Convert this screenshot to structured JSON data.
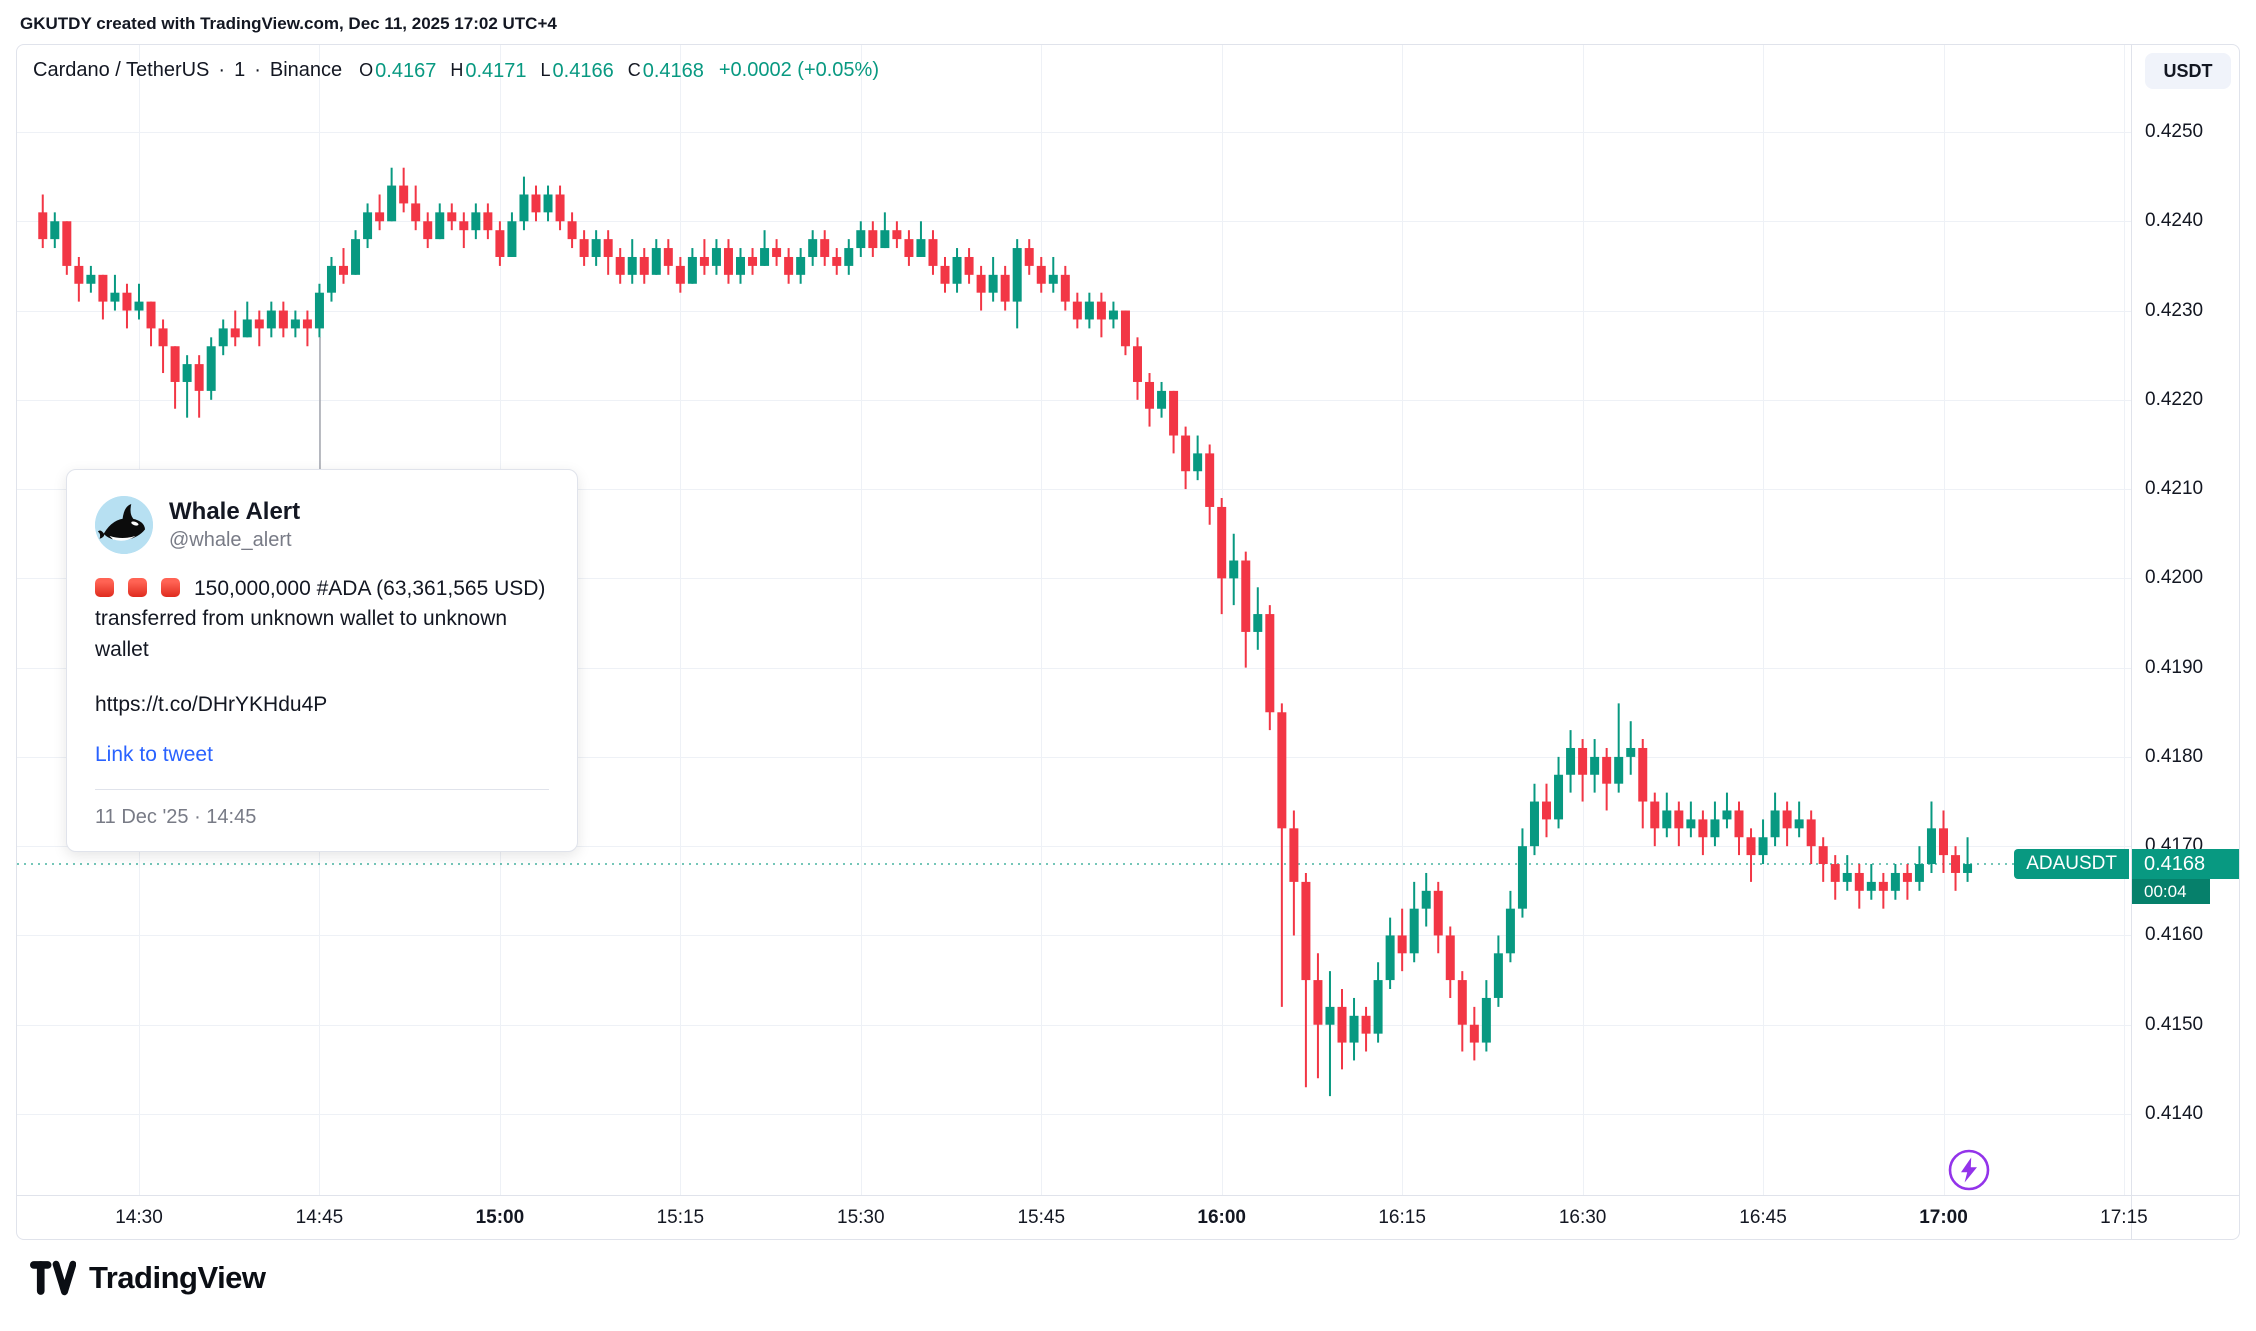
{
  "header": {
    "attribution": "GKUTDY created with TradingView.com, Dec 11, 2025 17:02 UTC+4"
  },
  "toolbar": {
    "currency_button": "USDT"
  },
  "legend": {
    "symbol": "Cardano / TetherUS",
    "separator": "·",
    "interval": "1",
    "exchange": "Binance",
    "ohlc": [
      {
        "label": "O",
        "value": "0.4167"
      },
      {
        "label": "H",
        "value": "0.4171"
      },
      {
        "label": "L",
        "value": "0.4166"
      },
      {
        "label": "C",
        "value": "0.4168"
      }
    ],
    "change": "+0.0002 (+0.05%)"
  },
  "price_flag": {
    "symbol": "ADAUSDT",
    "price": "0.4168",
    "countdown": "00:04"
  },
  "tooltip": {
    "title": "Whale Alert",
    "handle": "@whale_alert",
    "body": "150,000,000 #ADA (63,361,565 USD) transferred from unknown wallet to unknown wallet",
    "url": "https://t.co/DHrYKHdu4P",
    "link_label": "Link to tweet",
    "timestamp": "11 Dec '25 · 14:45",
    "anchor_time": "14:45"
  },
  "footer": {
    "brand": "TradingView"
  },
  "colors": {
    "up": "#089981",
    "down": "#f23645",
    "grid": "#eef1f6",
    "link_blue": "#2962ff",
    "accent_purple": "#9333ea",
    "flag_dark": "#06806b"
  },
  "chart_data": {
    "type": "candlestick",
    "symbol": "ADAUSDT",
    "exchange": "Binance",
    "interval": "1m",
    "grid": true,
    "legend_position": "top-left",
    "current_price": 0.4168,
    "price_axis_ticks": [
      "0.4250",
      "0.4240",
      "0.4230",
      "0.4220",
      "0.4210",
      "0.4200",
      "0.4190",
      "0.4180",
      "0.4170",
      "0.4160",
      "0.4150",
      "0.4140"
    ],
    "time_axis_ticks": [
      {
        "label": "14:30",
        "bold": false
      },
      {
        "label": "14:45",
        "bold": false
      },
      {
        "label": "15:00",
        "bold": true
      },
      {
        "label": "15:15",
        "bold": false
      },
      {
        "label": "15:30",
        "bold": false
      },
      {
        "label": "15:45",
        "bold": false
      },
      {
        "label": "16:00",
        "bold": true
      },
      {
        "label": "16:15",
        "bold": false
      },
      {
        "label": "16:30",
        "bold": false
      },
      {
        "label": "16:45",
        "bold": false
      },
      {
        "label": "17:00",
        "bold": true
      },
      {
        "label": "17:15",
        "bold": false
      }
    ],
    "candles": [
      [
        "14:22",
        0.4241,
        0.4243,
        0.4237,
        0.4238
      ],
      [
        "14:23",
        0.4238,
        0.4241,
        0.4237,
        0.424
      ],
      [
        "14:24",
        0.424,
        0.424,
        0.4234,
        0.4235
      ],
      [
        "14:25",
        0.4235,
        0.4236,
        0.4231,
        0.4233
      ],
      [
        "14:26",
        0.4233,
        0.4235,
        0.4232,
        0.4234
      ],
      [
        "14:27",
        0.4234,
        0.4234,
        0.4229,
        0.4231
      ],
      [
        "14:28",
        0.4231,
        0.4234,
        0.423,
        0.4232
      ],
      [
        "14:29",
        0.4232,
        0.4233,
        0.4228,
        0.423
      ],
      [
        "14:30",
        0.423,
        0.4233,
        0.4229,
        0.4231
      ],
      [
        "14:31",
        0.4231,
        0.4231,
        0.4226,
        0.4228
      ],
      [
        "14:32",
        0.4228,
        0.4229,
        0.4223,
        0.4226
      ],
      [
        "14:33",
        0.4226,
        0.4226,
        0.4219,
        0.4222
      ],
      [
        "14:34",
        0.4222,
        0.4225,
        0.4218,
        0.4224
      ],
      [
        "14:35",
        0.4224,
        0.4225,
        0.4218,
        0.4221
      ],
      [
        "14:36",
        0.4221,
        0.4227,
        0.422,
        0.4226
      ],
      [
        "14:37",
        0.4226,
        0.4229,
        0.4225,
        0.4228
      ],
      [
        "14:38",
        0.4228,
        0.423,
        0.4226,
        0.4227
      ],
      [
        "14:39",
        0.4227,
        0.4231,
        0.4227,
        0.4229
      ],
      [
        "14:40",
        0.4229,
        0.423,
        0.4226,
        0.4228
      ],
      [
        "14:41",
        0.4228,
        0.4231,
        0.4227,
        0.423
      ],
      [
        "14:42",
        0.423,
        0.4231,
        0.4227,
        0.4228
      ],
      [
        "14:43",
        0.4228,
        0.423,
        0.4227,
        0.4229
      ],
      [
        "14:44",
        0.4229,
        0.423,
        0.4226,
        0.4228
      ],
      [
        "14:45",
        0.4228,
        0.4233,
        0.4227,
        0.4232
      ],
      [
        "14:46",
        0.4232,
        0.4236,
        0.4231,
        0.4235
      ],
      [
        "14:47",
        0.4235,
        0.4237,
        0.4233,
        0.4234
      ],
      [
        "14:48",
        0.4234,
        0.4239,
        0.4234,
        0.4238
      ],
      [
        "14:49",
        0.4238,
        0.4242,
        0.4237,
        0.4241
      ],
      [
        "14:50",
        0.4241,
        0.4243,
        0.4239,
        0.424
      ],
      [
        "14:51",
        0.424,
        0.4246,
        0.424,
        0.4244
      ],
      [
        "14:52",
        0.4244,
        0.4246,
        0.4241,
        0.4242
      ],
      [
        "14:53",
        0.4242,
        0.4244,
        0.4239,
        0.424
      ],
      [
        "14:54",
        0.424,
        0.4241,
        0.4237,
        0.4238
      ],
      [
        "14:55",
        0.4238,
        0.4242,
        0.4238,
        0.4241
      ],
      [
        "14:56",
        0.4241,
        0.4242,
        0.4239,
        0.424
      ],
      [
        "14:57",
        0.424,
        0.4241,
        0.4237,
        0.4239
      ],
      [
        "14:58",
        0.4239,
        0.4242,
        0.4238,
        0.4241
      ],
      [
        "14:59",
        0.4241,
        0.4242,
        0.4238,
        0.4239
      ],
      [
        "15:00",
        0.4239,
        0.424,
        0.4235,
        0.4236
      ],
      [
        "15:01",
        0.4236,
        0.4241,
        0.4236,
        0.424
      ],
      [
        "15:02",
        0.424,
        0.4245,
        0.4239,
        0.4243
      ],
      [
        "15:03",
        0.4243,
        0.4244,
        0.424,
        0.4241
      ],
      [
        "15:04",
        0.4241,
        0.4244,
        0.424,
        0.4243
      ],
      [
        "15:05",
        0.4243,
        0.4244,
        0.4239,
        0.424
      ],
      [
        "15:06",
        0.424,
        0.4241,
        0.4237,
        0.4238
      ],
      [
        "15:07",
        0.4238,
        0.4239,
        0.4235,
        0.4236
      ],
      [
        "15:08",
        0.4236,
        0.4239,
        0.4235,
        0.4238
      ],
      [
        "15:09",
        0.4238,
        0.4239,
        0.4234,
        0.4236
      ],
      [
        "15:10",
        0.4236,
        0.4237,
        0.4233,
        0.4234
      ],
      [
        "15:11",
        0.4234,
        0.4238,
        0.4233,
        0.4236
      ],
      [
        "15:12",
        0.4236,
        0.4237,
        0.4233,
        0.4234
      ],
      [
        "15:13",
        0.4234,
        0.4238,
        0.4234,
        0.4237
      ],
      [
        "15:14",
        0.4237,
        0.4238,
        0.4234,
        0.4235
      ],
      [
        "15:15",
        0.4235,
        0.4236,
        0.4232,
        0.4233
      ],
      [
        "15:16",
        0.4233,
        0.4237,
        0.4233,
        0.4236
      ],
      [
        "15:17",
        0.4236,
        0.4238,
        0.4234,
        0.4235
      ],
      [
        "15:18",
        0.4235,
        0.4238,
        0.4234,
        0.4237
      ],
      [
        "15:19",
        0.4237,
        0.4238,
        0.4233,
        0.4234
      ],
      [
        "15:20",
        0.4234,
        0.4237,
        0.4233,
        0.4236
      ],
      [
        "15:21",
        0.4236,
        0.4237,
        0.4234,
        0.4235
      ],
      [
        "15:22",
        0.4235,
        0.4239,
        0.4235,
        0.4237
      ],
      [
        "15:23",
        0.4237,
        0.4238,
        0.4235,
        0.4236
      ],
      [
        "15:24",
        0.4236,
        0.4237,
        0.4233,
        0.4234
      ],
      [
        "15:25",
        0.4234,
        0.4237,
        0.4233,
        0.4236
      ],
      [
        "15:26",
        0.4236,
        0.4239,
        0.4235,
        0.4238
      ],
      [
        "15:27",
        0.4238,
        0.4239,
        0.4235,
        0.4236
      ],
      [
        "15:28",
        0.4236,
        0.4237,
        0.4234,
        0.4235
      ],
      [
        "15:29",
        0.4235,
        0.4238,
        0.4234,
        0.4237
      ],
      [
        "15:30",
        0.4237,
        0.424,
        0.4236,
        0.4239
      ],
      [
        "15:31",
        0.4239,
        0.424,
        0.4236,
        0.4237
      ],
      [
        "15:32",
        0.4237,
        0.4241,
        0.4237,
        0.4239
      ],
      [
        "15:33",
        0.4239,
        0.424,
        0.4237,
        0.4238
      ],
      [
        "15:34",
        0.4238,
        0.4239,
        0.4235,
        0.4236
      ],
      [
        "15:35",
        0.4236,
        0.424,
        0.4236,
        0.4238
      ],
      [
        "15:36",
        0.4238,
        0.4239,
        0.4234,
        0.4235
      ],
      [
        "15:37",
        0.4235,
        0.4236,
        0.4232,
        0.4233
      ],
      [
        "15:38",
        0.4233,
        0.4237,
        0.4232,
        0.4236
      ],
      [
        "15:39",
        0.4236,
        0.4237,
        0.4233,
        0.4234
      ],
      [
        "15:40",
        0.4234,
        0.4235,
        0.423,
        0.4232
      ],
      [
        "15:41",
        0.4232,
        0.4236,
        0.4231,
        0.4234
      ],
      [
        "15:42",
        0.4234,
        0.4235,
        0.423,
        0.4231
      ],
      [
        "15:43",
        0.4231,
        0.4238,
        0.4228,
        0.4237
      ],
      [
        "15:44",
        0.4237,
        0.4238,
        0.4234,
        0.4235
      ],
      [
        "15:45",
        0.4235,
        0.4236,
        0.4232,
        0.4233
      ],
      [
        "15:46",
        0.4233,
        0.4236,
        0.4232,
        0.4234
      ],
      [
        "15:47",
        0.4234,
        0.4235,
        0.423,
        0.4231
      ],
      [
        "15:48",
        0.4231,
        0.4232,
        0.4228,
        0.4229
      ],
      [
        "15:49",
        0.4229,
        0.4232,
        0.4228,
        0.4231
      ],
      [
        "15:50",
        0.4231,
        0.4232,
        0.4227,
        0.4229
      ],
      [
        "15:51",
        0.4229,
        0.4231,
        0.4228,
        0.423
      ],
      [
        "15:52",
        0.423,
        0.423,
        0.4225,
        0.4226
      ],
      [
        "15:53",
        0.4226,
        0.4227,
        0.422,
        0.4222
      ],
      [
        "15:54",
        0.4222,
        0.4223,
        0.4217,
        0.4219
      ],
      [
        "15:55",
        0.4219,
        0.4222,
        0.4218,
        0.4221
      ],
      [
        "15:56",
        0.4221,
        0.4221,
        0.4214,
        0.4216
      ],
      [
        "15:57",
        0.4216,
        0.4217,
        0.421,
        0.4212
      ],
      [
        "15:58",
        0.4212,
        0.4216,
        0.4211,
        0.4214
      ],
      [
        "15:59",
        0.4214,
        0.4215,
        0.4206,
        0.4208
      ],
      [
        "16:00",
        0.4208,
        0.4209,
        0.4196,
        0.42
      ],
      [
        "16:01",
        0.42,
        0.4205,
        0.4197,
        0.4202
      ],
      [
        "16:02",
        0.4202,
        0.4203,
        0.419,
        0.4194
      ],
      [
        "16:03",
        0.4194,
        0.4199,
        0.4192,
        0.4196
      ],
      [
        "16:04",
        0.4196,
        0.4197,
        0.4183,
        0.4185
      ],
      [
        "16:05",
        0.4185,
        0.4186,
        0.4152,
        0.4172
      ],
      [
        "16:06",
        0.4172,
        0.4174,
        0.416,
        0.4166
      ],
      [
        "16:07",
        0.4166,
        0.4167,
        0.4143,
        0.4155
      ],
      [
        "16:08",
        0.4155,
        0.4158,
        0.4144,
        0.415
      ],
      [
        "16:09",
        0.415,
        0.4156,
        0.4142,
        0.4152
      ],
      [
        "16:10",
        0.4152,
        0.4154,
        0.4145,
        0.4148
      ],
      [
        "16:11",
        0.4148,
        0.4153,
        0.4146,
        0.4151
      ],
      [
        "16:12",
        0.4151,
        0.4152,
        0.4147,
        0.4149
      ],
      [
        "16:13",
        0.4149,
        0.4157,
        0.4148,
        0.4155
      ],
      [
        "16:14",
        0.4155,
        0.4162,
        0.4154,
        0.416
      ],
      [
        "16:15",
        0.416,
        0.4163,
        0.4156,
        0.4158
      ],
      [
        "16:16",
        0.4158,
        0.4166,
        0.4157,
        0.4163
      ],
      [
        "16:17",
        0.4163,
        0.4167,
        0.4161,
        0.4165
      ],
      [
        "16:18",
        0.4165,
        0.4166,
        0.4158,
        0.416
      ],
      [
        "16:19",
        0.416,
        0.4161,
        0.4153,
        0.4155
      ],
      [
        "16:20",
        0.4155,
        0.4156,
        0.4147,
        0.415
      ],
      [
        "16:21",
        0.415,
        0.4152,
        0.4146,
        0.4148
      ],
      [
        "16:22",
        0.4148,
        0.4155,
        0.4147,
        0.4153
      ],
      [
        "16:23",
        0.4153,
        0.416,
        0.4152,
        0.4158
      ],
      [
        "16:24",
        0.4158,
        0.4165,
        0.4157,
        0.4163
      ],
      [
        "16:25",
        0.4163,
        0.4172,
        0.4162,
        0.417
      ],
      [
        "16:26",
        0.417,
        0.4177,
        0.4169,
        0.4175
      ],
      [
        "16:27",
        0.4175,
        0.4177,
        0.4171,
        0.4173
      ],
      [
        "16:28",
        0.4173,
        0.418,
        0.4172,
        0.4178
      ],
      [
        "16:29",
        0.4178,
        0.4183,
        0.4176,
        0.4181
      ],
      [
        "16:30",
        0.4181,
        0.4182,
        0.4175,
        0.4178
      ],
      [
        "16:31",
        0.4178,
        0.4182,
        0.4176,
        0.418
      ],
      [
        "16:32",
        0.418,
        0.4181,
        0.4174,
        0.4177
      ],
      [
        "16:33",
        0.4177,
        0.4186,
        0.4176,
        0.418
      ],
      [
        "16:34",
        0.418,
        0.4184,
        0.4178,
        0.4181
      ],
      [
        "16:35",
        0.4181,
        0.4182,
        0.4172,
        0.4175
      ],
      [
        "16:36",
        0.4175,
        0.4176,
        0.417,
        0.4172
      ],
      [
        "16:37",
        0.4172,
        0.4176,
        0.4171,
        0.4174
      ],
      [
        "16:38",
        0.4174,
        0.4175,
        0.417,
        0.4172
      ],
      [
        "16:39",
        0.4172,
        0.4175,
        0.4171,
        0.4173
      ],
      [
        "16:40",
        0.4173,
        0.4174,
        0.4169,
        0.4171
      ],
      [
        "16:41",
        0.4171,
        0.4175,
        0.417,
        0.4173
      ],
      [
        "16:42",
        0.4173,
        0.4176,
        0.4172,
        0.4174
      ],
      [
        "16:43",
        0.4174,
        0.4175,
        0.4169,
        0.4171
      ],
      [
        "16:44",
        0.4171,
        0.4172,
        0.4166,
        0.4169
      ],
      [
        "16:45",
        0.4169,
        0.4173,
        0.4168,
        0.4171
      ],
      [
        "16:46",
        0.4171,
        0.4176,
        0.417,
        0.4174
      ],
      [
        "16:47",
        0.4174,
        0.4175,
        0.417,
        0.4172
      ],
      [
        "16:48",
        0.4172,
        0.4175,
        0.4171,
        0.4173
      ],
      [
        "16:49",
        0.4173,
        0.4174,
        0.4168,
        0.417
      ],
      [
        "16:50",
        0.417,
        0.4171,
        0.4166,
        0.4168
      ],
      [
        "16:51",
        0.4168,
        0.4169,
        0.4164,
        0.4166
      ],
      [
        "16:52",
        0.4166,
        0.4169,
        0.4165,
        0.4167
      ],
      [
        "16:53",
        0.4167,
        0.4168,
        0.4163,
        0.4165
      ],
      [
        "16:54",
        0.4165,
        0.4168,
        0.4164,
        0.4166
      ],
      [
        "16:55",
        0.4166,
        0.4167,
        0.4163,
        0.4165
      ],
      [
        "16:56",
        0.4165,
        0.4168,
        0.4164,
        0.4167
      ],
      [
        "16:57",
        0.4167,
        0.4168,
        0.4164,
        0.4166
      ],
      [
        "16:58",
        0.4166,
        0.417,
        0.4165,
        0.4168
      ],
      [
        "16:59",
        0.4168,
        0.4175,
        0.4167,
        0.4172
      ],
      [
        "17:00",
        0.4172,
        0.4174,
        0.4167,
        0.4169
      ],
      [
        "17:01",
        0.4169,
        0.417,
        0.4165,
        0.4167
      ],
      [
        "17:02",
        0.4167,
        0.4171,
        0.4166,
        0.4168
      ]
    ]
  }
}
